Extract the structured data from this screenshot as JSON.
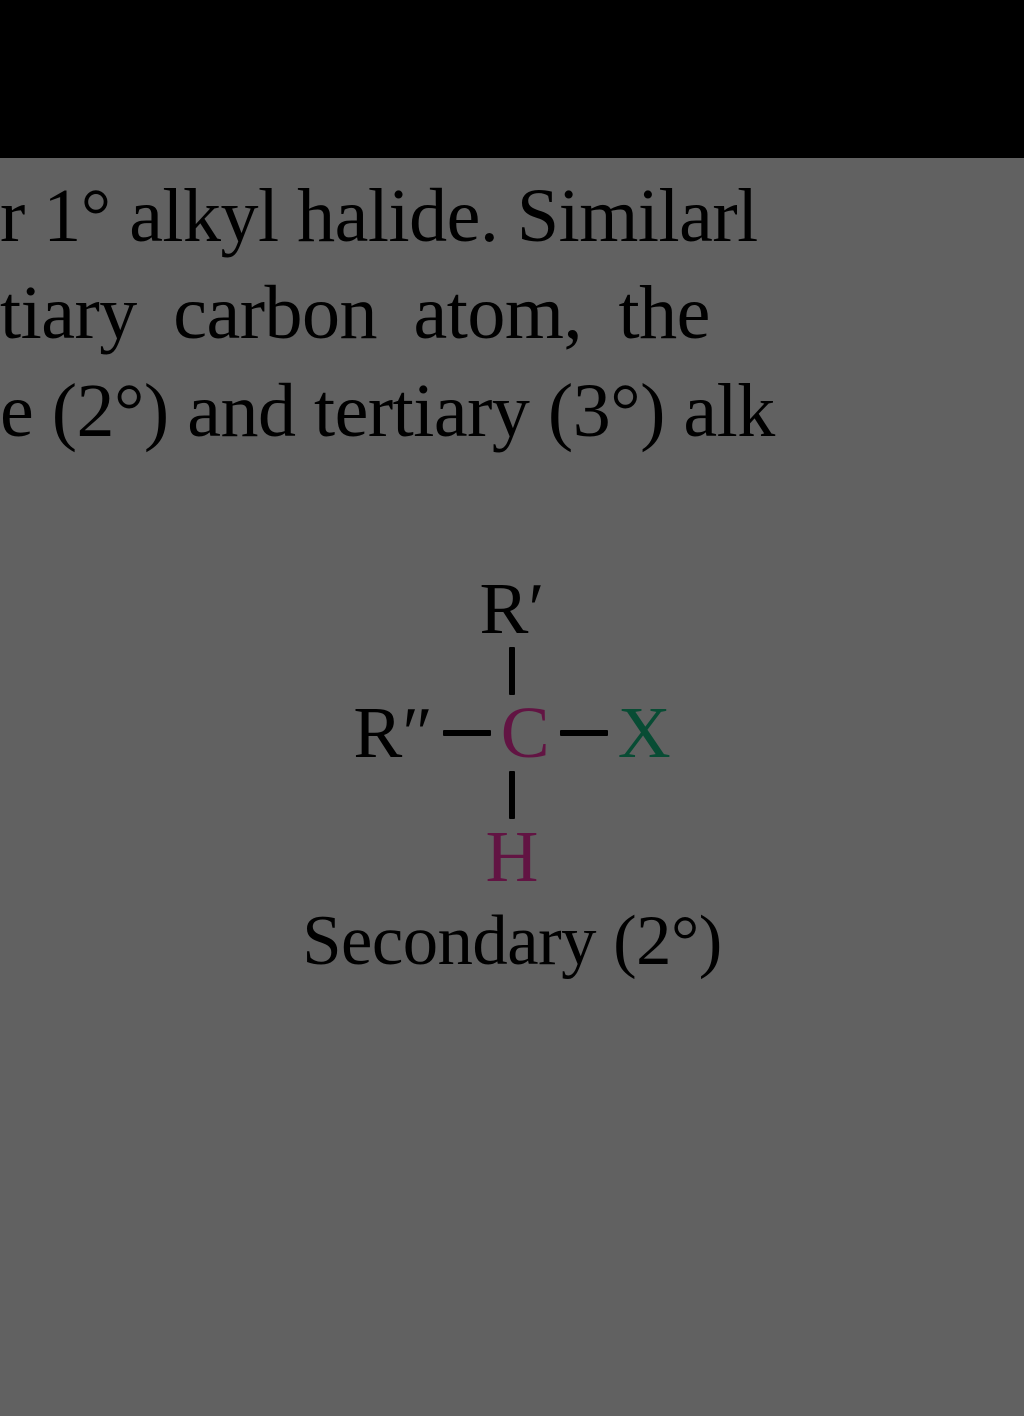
{
  "colors": {
    "page_bg": "#b1b1b1",
    "top_overlay": "#000000",
    "content_shade": "rgba(0,0,0,0.45)",
    "text": "#000000",
    "carbon": "#b3267a",
    "halogen": "#0f8a5f",
    "r_group": "#000000",
    "bond": "#000000"
  },
  "text": {
    "line1": "r 1° alkyl halide. Similarl",
    "line2": "tiary carbon atom, the",
    "line3": "e (2°) and tertiary (3°) alk",
    "font_size_pt": 57
  },
  "structure": {
    "top": "R′",
    "left": "R″",
    "center": "C",
    "right": "X",
    "bottom": "H",
    "caption": "Secondary (2°)",
    "atom_font_size_pt": 55,
    "caption_font_size_pt": 53,
    "bond_len_v": 48,
    "bond_len_h": 48
  }
}
